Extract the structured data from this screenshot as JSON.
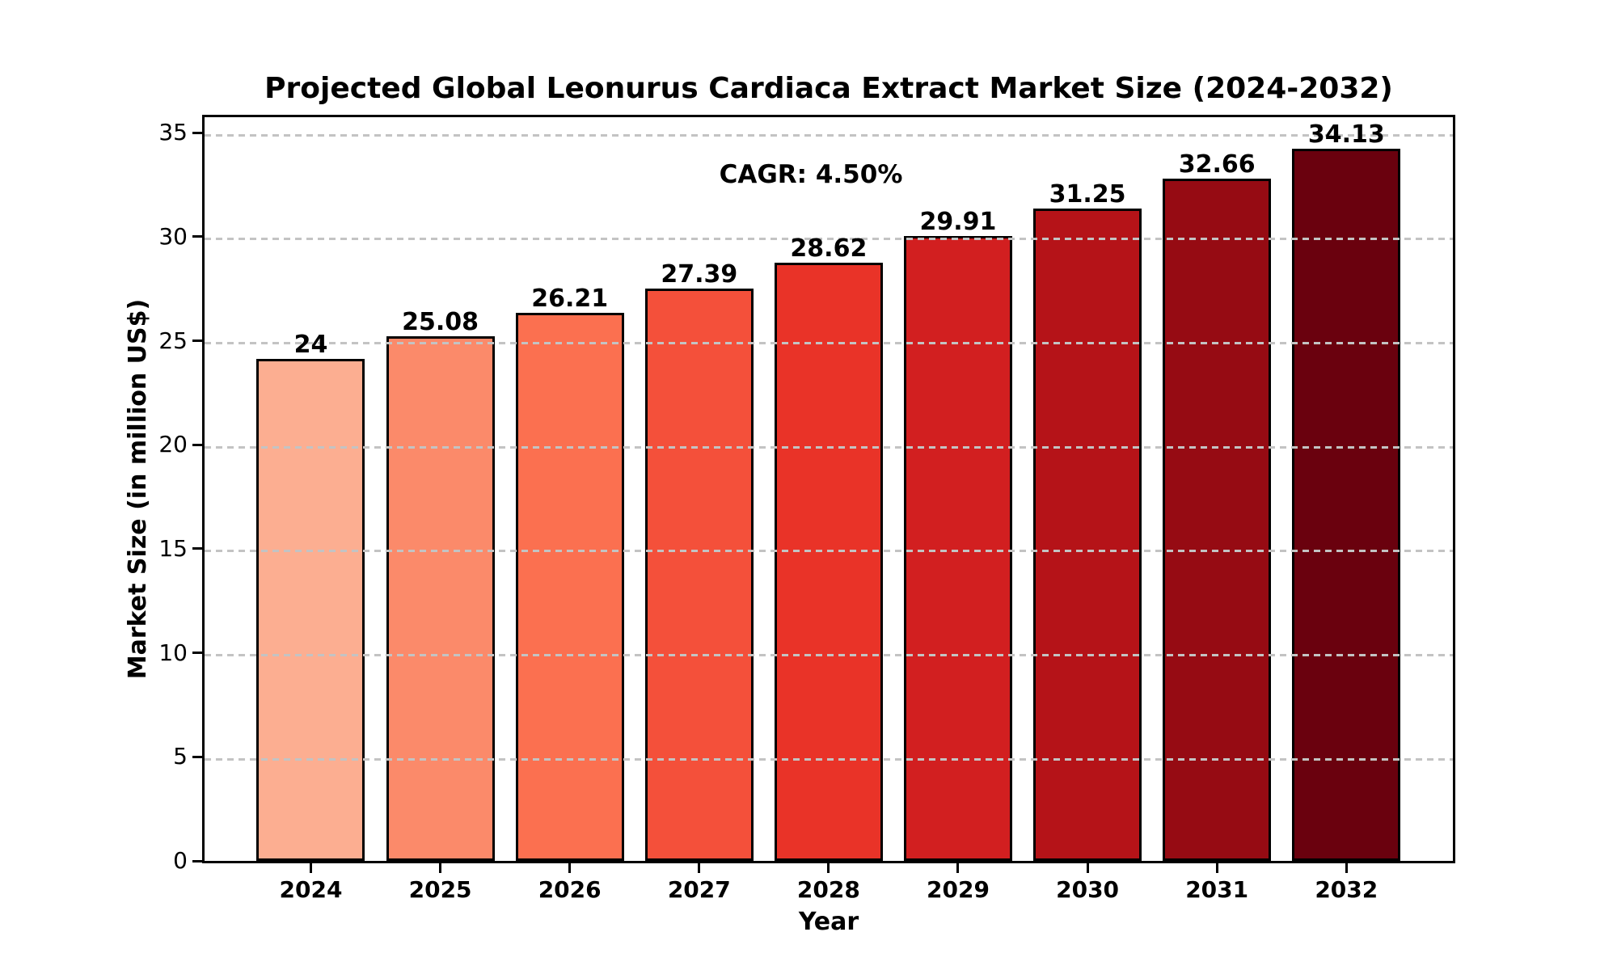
{
  "chart_data": {
    "type": "bar",
    "title": "Projected Global Leonurus Cardiaca Extract Market Size (2024-2032)",
    "xlabel": "Year",
    "ylabel": "Market Size (in million US$)",
    "annotation": "CAGR: 4.50%",
    "categories": [
      "2024",
      "2025",
      "2026",
      "2027",
      "2028",
      "2029",
      "2030",
      "2031",
      "2032"
    ],
    "values": [
      24,
      25.08,
      26.21,
      27.39,
      28.62,
      29.91,
      31.25,
      32.66,
      34.13
    ],
    "value_labels": [
      "24",
      "25.08",
      "26.21",
      "27.39",
      "28.62",
      "29.91",
      "31.25",
      "32.66",
      "34.13"
    ],
    "bar_colors": [
      "#fcae91",
      "#fb8a6a",
      "#fb7050",
      "#f4503a",
      "#e93328",
      "#d21f20",
      "#b51318",
      "#960b13",
      "#6a010e"
    ],
    "bar_edge_color": "#000000",
    "yticks": [
      0,
      5,
      10,
      15,
      20,
      25,
      30,
      35
    ],
    "ylim": [
      0,
      35.9
    ],
    "grid": {
      "axis": "y",
      "style": "dashed",
      "color": "#c3c3c3",
      "on_top_of_bars": true
    },
    "legend": "none",
    "background": "#ffffff",
    "text_color": "#000000"
  }
}
